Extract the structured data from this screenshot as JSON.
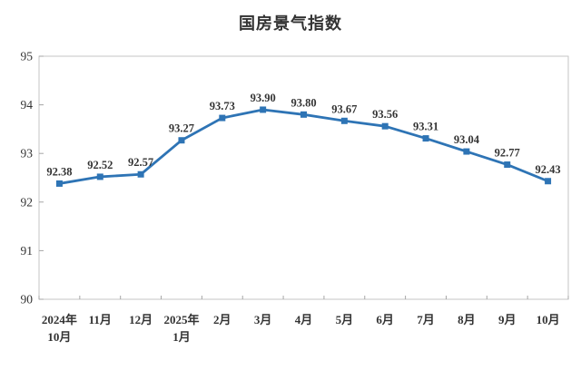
{
  "chart_data": {
    "type": "line",
    "title": "国房景气指数",
    "categories": [
      "2024年\n10月",
      "11月",
      "12月",
      "2025年\n1月",
      "2月",
      "3月",
      "4月",
      "5月",
      "6月",
      "7月",
      "8月",
      "9月",
      "10月"
    ],
    "values": [
      92.38,
      92.52,
      92.57,
      93.27,
      93.73,
      93.9,
      93.8,
      93.67,
      93.56,
      93.31,
      93.04,
      92.77,
      92.43
    ],
    "data_labels": [
      "92.38",
      "92.52",
      "92.57",
      "93.27",
      "93.73",
      "93.90",
      "93.80",
      "93.67",
      "93.56",
      "93.31",
      "93.04",
      "92.77",
      "92.43"
    ],
    "yticks": [
      "90",
      "91",
      "92",
      "93",
      "94",
      "95"
    ],
    "ylim": [
      90,
      95
    ],
    "xlabel": "",
    "ylabel": "",
    "grid": false,
    "legend": "none",
    "marker": "square",
    "colors": {
      "series": "#2e74b5",
      "axis": "#c6c6c6",
      "tick": "#a6a6a6",
      "text": "#333333",
      "title": "#333333"
    }
  }
}
